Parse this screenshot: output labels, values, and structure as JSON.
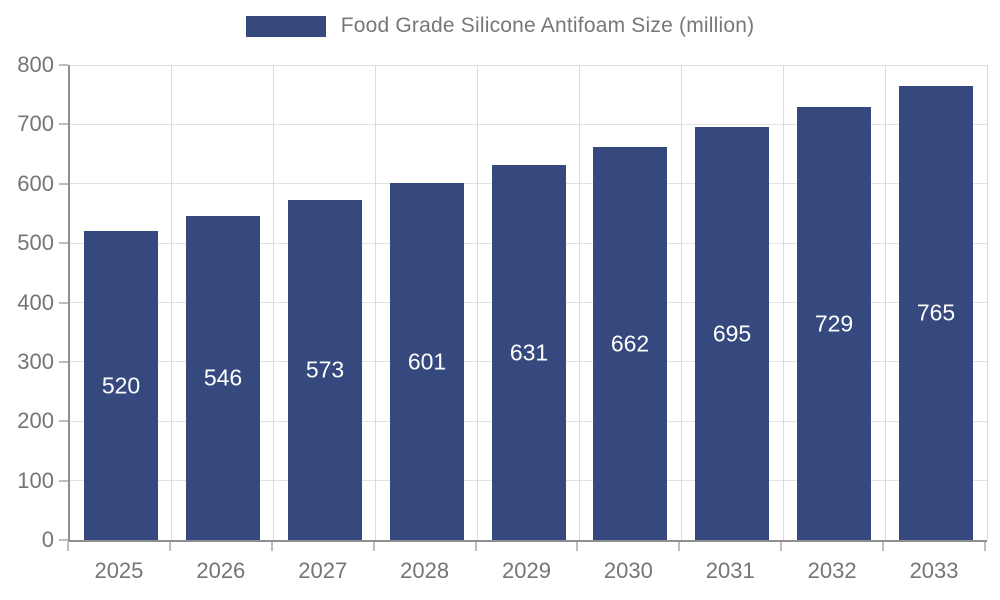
{
  "legend": {
    "label": "Food Grade Silicone Antifoam Size (million)"
  },
  "chart_data": {
    "type": "bar",
    "title": "Food Grade Silicone Antifoam Size (million)",
    "categories": [
      "2025",
      "2026",
      "2027",
      "2028",
      "2029",
      "2030",
      "2031",
      "2032",
      "2033"
    ],
    "values": [
      520,
      546,
      573,
      601,
      631,
      662,
      695,
      729,
      765
    ],
    "xlabel": "",
    "ylabel": "",
    "ylim": [
      0,
      800
    ],
    "yticks": [
      0,
      100,
      200,
      300,
      400,
      500,
      600,
      700,
      800
    ],
    "grid": true,
    "legend_position": "top-center",
    "bar_labels_inside": true,
    "colors": {
      "bar": "#36497E",
      "bar_label": "#FFFFFF",
      "axis": "#8F8F8F",
      "grid_horizontal": "#E2E2E2",
      "grid_vertical": "#D8DAE6",
      "tick_mark": "#BDBDBD",
      "tick_label": "#757575",
      "legend_text": "#777777"
    }
  }
}
